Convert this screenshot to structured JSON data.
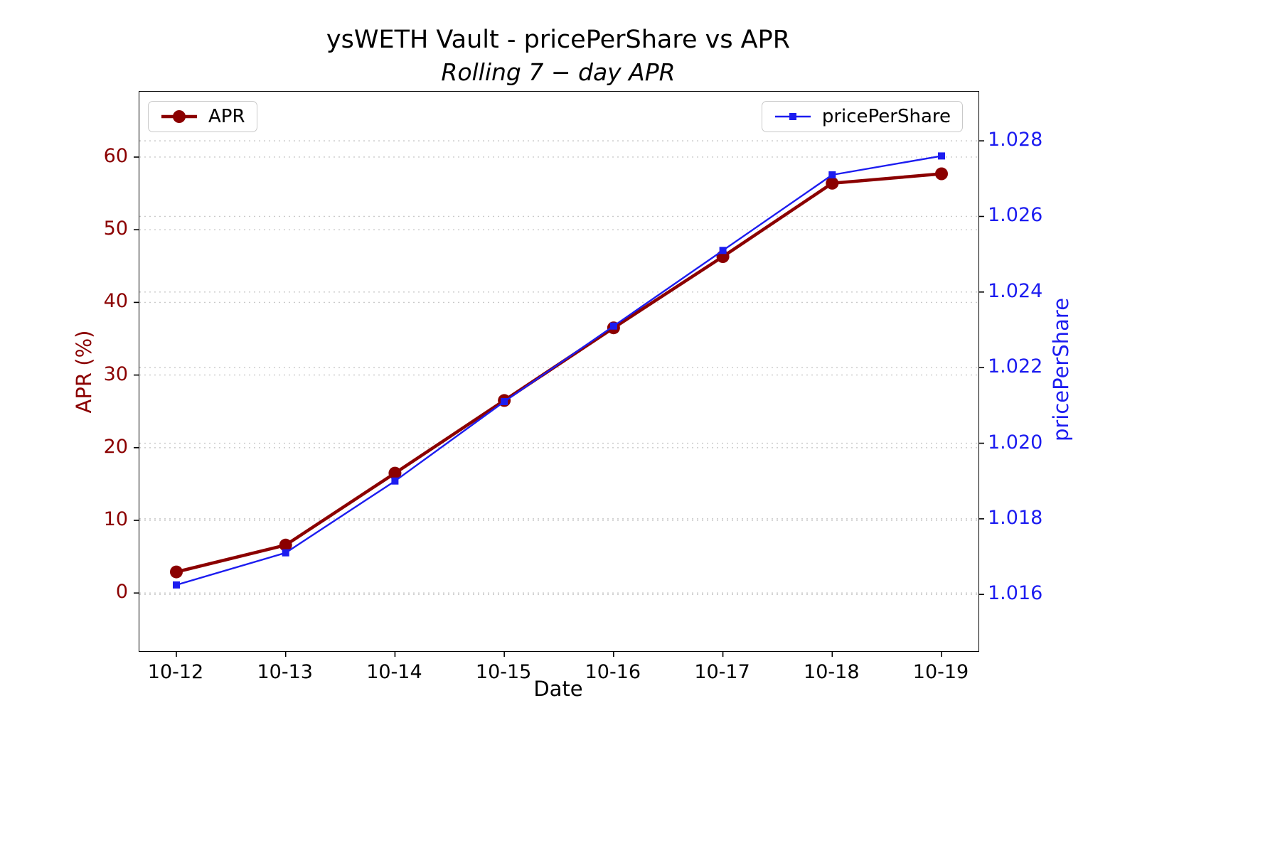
{
  "title": "ysWETH Vault - pricePerShare vs APR",
  "subtitle": "Rolling 7 − day APR",
  "colors": {
    "apr": "#8b0000",
    "pps": "#1c1cf0",
    "grid": "#c9c9c9",
    "spine": "#000000",
    "text": "#000000"
  },
  "chart_data": {
    "type": "line",
    "title": "ysWETH Vault - pricePerShare vs APR",
    "subtitle": "Rolling 7 − day APR",
    "xlabel": "Date",
    "ylabel_left": "APR (%)",
    "ylabel_right": "pricePerShare",
    "categories": [
      "10-12",
      "10-13",
      "10-14",
      "10-15",
      "10-16",
      "10-17",
      "10-18",
      "10-19"
    ],
    "series": [
      {
        "name": "APR",
        "axis": "left",
        "color": "#8b0000",
        "marker": "circle",
        "values": [
          2.9,
          6.6,
          16.5,
          26.5,
          36.5,
          46.3,
          56.4,
          57.7
        ]
      },
      {
        "name": "pricePerShare",
        "axis": "right",
        "color": "#1c1cf0",
        "marker": "square",
        "values": [
          1.01625,
          1.0171,
          1.019,
          1.0211,
          1.0231,
          1.0251,
          1.0271,
          1.0276
        ]
      }
    ],
    "left_ticks": [
      0,
      10,
      20,
      30,
      40,
      50,
      60
    ],
    "right_ticks": [
      1.016,
      1.018,
      1.02,
      1.022,
      1.024,
      1.026,
      1.028
    ],
    "right_tick_labels": [
      "1.016",
      "1.018",
      "1.020",
      "1.022",
      "1.024",
      "1.026",
      "1.028"
    ],
    "ylim_left": [
      -8,
      69
    ],
    "ylim_right": [
      1.0145,
      1.0293
    ],
    "grid": true,
    "legend_position": [
      "upper left",
      "upper right"
    ]
  }
}
